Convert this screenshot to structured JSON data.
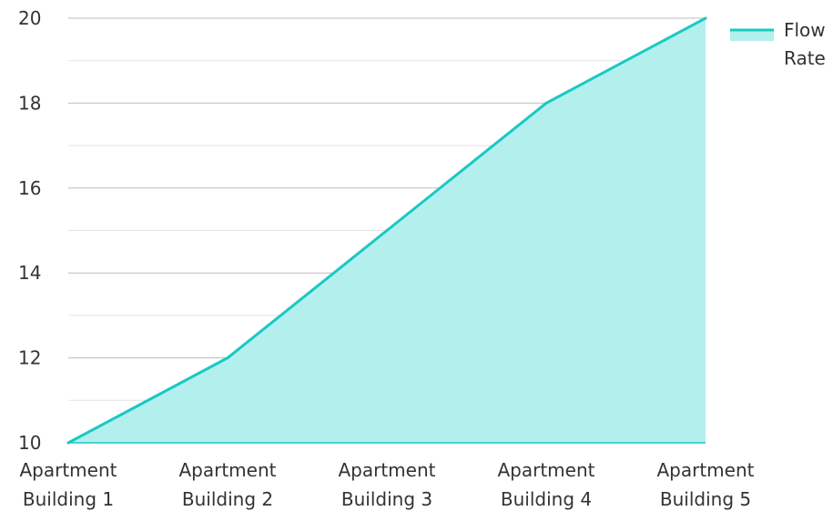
{
  "chart_data": {
    "type": "area",
    "title": "",
    "xlabel": "",
    "ylabel": "",
    "categories": [
      "Apartment Building 1",
      "Apartment Building 2",
      "Apartment Building 3",
      "Apartment Building 4",
      "Apartment Building 5"
    ],
    "category_lines": [
      [
        "Apartment",
        "Building 1"
      ],
      [
        "Apartment",
        "Building 2"
      ],
      [
        "Apartment",
        "Building 3"
      ],
      [
        "Apartment",
        "Building 4"
      ],
      [
        "Apartment",
        "Building 5"
      ]
    ],
    "series": [
      {
        "name": "Flow Rate",
        "values": [
          10,
          12,
          15,
          18,
          20
        ]
      }
    ],
    "ylim": [
      10,
      20
    ],
    "yticks": [
      "10",
      "12",
      "14",
      "16",
      "18",
      "20"
    ],
    "ytick_values": [
      10,
      12,
      14,
      16,
      18,
      20
    ],
    "minor_gridlines": true,
    "grid": true,
    "legend": {
      "placement": "top-right",
      "lines": [
        "Flow",
        "Rate"
      ]
    },
    "colors": {
      "line": "#19c9c3",
      "fill": "#b2efed",
      "major_grid": "#bdbdbd",
      "minor_grid": "#e3e3e3",
      "axis": "#19c9c3"
    }
  }
}
